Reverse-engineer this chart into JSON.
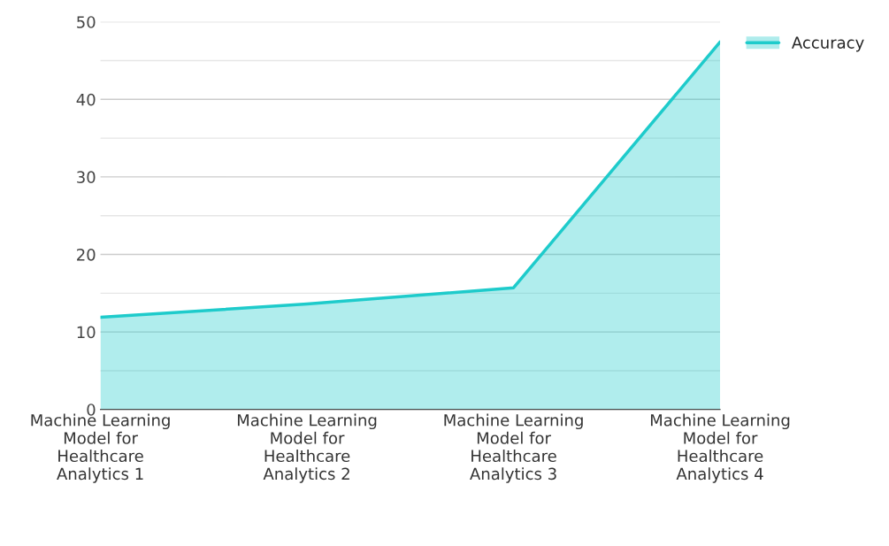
{
  "chart_data": {
    "type": "area",
    "categories": [
      "Machine Learning Model for Healthcare Analytics 1",
      "Machine Learning Model for Healthcare Analytics 2",
      "Machine Learning Model for Healthcare Analytics 3",
      "Machine Learning Model for Healthcare Analytics 4"
    ],
    "series": [
      {
        "name": "Accuracy",
        "color": "#1ecbcb",
        "values": [
          11.9,
          13.6,
          15.7,
          47.4
        ]
      }
    ],
    "ylim": [
      0,
      50
    ],
    "yticks": [
      0,
      {
        "value": 5,
        "label": null
      },
      10,
      {
        "value": 15,
        "label": null
      },
      20,
      {
        "value": 25,
        "label": null
      },
      30,
      {
        "value": 35,
        "label": null
      },
      40,
      {
        "value": 45,
        "label": null
      },
      50
    ],
    "grid": "y",
    "legend": "top right",
    "marker": "none",
    "line_style": "solid"
  }
}
